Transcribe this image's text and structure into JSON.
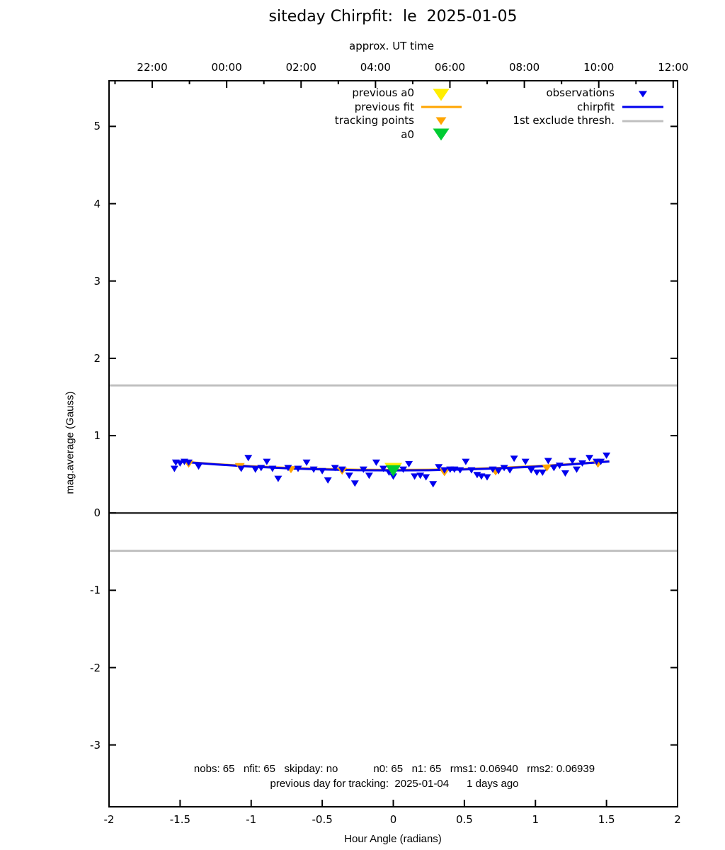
{
  "title": "siteday Chirpfit:  le  2025-01-05",
  "colors": {
    "blue": "#0000ee",
    "orange": "#ffa500",
    "yellow": "#ffee00",
    "green": "#00cc33",
    "gray": "#c0c0c0",
    "black": "#000000"
  },
  "axes": {
    "top": {
      "label": "approx. UT time",
      "ticks": [
        {
          "label": "22:00",
          "ha": -1.696
        },
        {
          "label": "00:00",
          "ha": -1.1724
        },
        {
          "label": "02:00",
          "ha": -0.6488
        },
        {
          "label": "04:00",
          "ha": -0.1252
        },
        {
          "label": "06:00",
          "ha": 0.3984
        },
        {
          "label": "08:00",
          "ha": 0.922
        },
        {
          "label": "10:00",
          "ha": 1.4456
        },
        {
          "label": "12:00",
          "ha": 1.9692
        }
      ],
      "minor_ha": [
        -1.9578,
        -1.4342,
        -0.9106,
        -0.387,
        0.1366,
        0.6602,
        1.1838,
        1.7074
      ]
    },
    "bottom": {
      "label": "Hour Angle (radians)",
      "ticks": [
        {
          "label": "-2",
          "v": -2
        },
        {
          "label": "-1.5",
          "v": -1.5
        },
        {
          "label": "-1",
          "v": -1
        },
        {
          "label": "-0.5",
          "v": -0.5
        },
        {
          "label": "0",
          "v": 0
        },
        {
          "label": "0.5",
          "v": 0.5
        },
        {
          "label": "1",
          "v": 1
        },
        {
          "label": "1.5",
          "v": 1.5
        },
        {
          "label": "2",
          "v": 2
        }
      ]
    },
    "left": {
      "label": "mag.average (Gauss)",
      "ticks": [
        {
          "label": "5",
          "v": 5
        },
        {
          "label": "4",
          "v": 4
        },
        {
          "label": "3",
          "v": 3
        },
        {
          "label": "2",
          "v": 2
        },
        {
          "label": "1",
          "v": 1
        },
        {
          "label": "0",
          "v": 0
        },
        {
          "label": "-1",
          "v": -1
        },
        {
          "label": "-2",
          "v": -2
        },
        {
          "label": "-3",
          "v": -3
        }
      ]
    }
  },
  "legend": {
    "left": [
      {
        "label": "previous a0",
        "sample": "big-triangle",
        "color": "#ffee00"
      },
      {
        "label": "previous fit",
        "sample": "line",
        "color": "#ffa500"
      },
      {
        "label": "tracking points",
        "sample": "small-triangle",
        "color": "#ffa500"
      },
      {
        "label": "a0",
        "sample": "big-triangle",
        "color": "#00cc33"
      }
    ],
    "right": [
      {
        "label": "observations",
        "sample": "small-triangle",
        "color": "#0000ee"
      },
      {
        "label": "chirpfit",
        "sample": "line",
        "color": "#0000ee"
      },
      {
        "label": "1st exclude thresh.",
        "sample": "line",
        "color": "#c0c0c0"
      }
    ]
  },
  "stats": {
    "line1": "nobs: 65   nfit: 65   skipday: no            n0: 65   n1: 65   rms1: 0.06940   rms2: 0.06939",
    "line2": "previous day for tracking:  2025-01-04      1 days ago"
  },
  "chart_data": {
    "type": "scatter",
    "title": "siteday Chirpfit:  le  2025-01-05",
    "xlabel": "Hour Angle (radians)",
    "ylabel": "mag.average (Gauss)",
    "x2label": "approx. UT time",
    "xlim": [
      -2,
      2
    ],
    "ylim": [
      -3.8,
      5.59
    ],
    "grid": false,
    "legend_position": "top-inside",
    "series": [
      {
        "name": "observations",
        "type": "scatter",
        "marker": "triangle-down",
        "color": "#0000ee",
        "points": [
          [
            -1.53,
            0.65
          ],
          [
            -1.54,
            0.57
          ],
          [
            -1.5,
            0.64
          ],
          [
            -1.47,
            0.66
          ],
          [
            -1.44,
            0.65
          ],
          [
            -1.37,
            0.6
          ],
          [
            -1.07,
            0.57
          ],
          [
            -1.02,
            0.71
          ],
          [
            -0.97,
            0.56
          ],
          [
            -0.93,
            0.58
          ],
          [
            -0.89,
            0.66
          ],
          [
            -0.85,
            0.57
          ],
          [
            -0.81,
            0.44
          ],
          [
            -0.74,
            0.58
          ],
          [
            -0.67,
            0.57
          ],
          [
            -0.61,
            0.65
          ],
          [
            -0.56,
            0.56
          ],
          [
            -0.5,
            0.54
          ],
          [
            -0.46,
            0.42
          ],
          [
            -0.41,
            0.58
          ],
          [
            -0.36,
            0.56
          ],
          [
            -0.31,
            0.48
          ],
          [
            -0.27,
            0.38
          ],
          [
            -0.21,
            0.56
          ],
          [
            -0.17,
            0.48
          ],
          [
            -0.12,
            0.65
          ],
          [
            -0.07,
            0.57
          ],
          [
            -0.03,
            0.52
          ],
          [
            0.0,
            0.47
          ],
          [
            0.07,
            0.56
          ],
          [
            0.11,
            0.63
          ],
          [
            0.15,
            0.47
          ],
          [
            0.19,
            0.48
          ],
          [
            0.23,
            0.46
          ],
          [
            0.28,
            0.37
          ],
          [
            0.32,
            0.59
          ],
          [
            0.36,
            0.55
          ],
          [
            0.4,
            0.56
          ],
          [
            0.43,
            0.56
          ],
          [
            0.47,
            0.55
          ],
          [
            0.51,
            0.66
          ],
          [
            0.55,
            0.55
          ],
          [
            0.59,
            0.49
          ],
          [
            0.62,
            0.47
          ],
          [
            0.66,
            0.46
          ],
          [
            0.7,
            0.56
          ],
          [
            0.74,
            0.54
          ],
          [
            0.78,
            0.58
          ],
          [
            0.82,
            0.55
          ],
          [
            0.85,
            0.7
          ],
          [
            0.93,
            0.66
          ],
          [
            0.97,
            0.55
          ],
          [
            1.01,
            0.52
          ],
          [
            1.05,
            0.52
          ],
          [
            1.09,
            0.67
          ],
          [
            1.13,
            0.58
          ],
          [
            1.17,
            0.61
          ],
          [
            1.21,
            0.51
          ],
          [
            1.26,
            0.67
          ],
          [
            1.29,
            0.56
          ],
          [
            1.33,
            0.64
          ],
          [
            1.38,
            0.71
          ],
          [
            1.43,
            0.66
          ],
          [
            1.46,
            0.66
          ],
          [
            1.5,
            0.74
          ]
        ]
      },
      {
        "name": "chirpfit",
        "type": "line",
        "color": "#0000ee",
        "x": [
          -1.55,
          -1.25,
          -1.0,
          -0.75,
          -0.5,
          -0.25,
          0,
          0.25,
          0.5,
          0.75,
          1.0,
          1.25,
          1.52
        ],
        "y": [
          0.67,
          0.628,
          0.6,
          0.578,
          0.563,
          0.553,
          0.55,
          0.553,
          0.563,
          0.578,
          0.6,
          0.628,
          0.666
        ]
      },
      {
        "name": "previous fit",
        "type": "line",
        "color": "#ffa500",
        "x": [
          -1.55,
          -1.25,
          -1.0,
          -0.75,
          -0.5,
          -0.25,
          0,
          0.25,
          0.5,
          0.75,
          1.0,
          1.25,
          1.52
        ],
        "y": [
          0.672,
          0.632,
          0.605,
          0.584,
          0.569,
          0.56,
          0.557,
          0.56,
          0.569,
          0.584,
          0.605,
          0.632,
          0.668
        ]
      },
      {
        "name": "tracking points",
        "type": "scatter",
        "marker": "triangle-down",
        "color": "#ffa500",
        "points": [
          [
            -1.44,
            0.63
          ],
          [
            -1.08,
            0.6
          ],
          [
            -0.72,
            0.56
          ],
          [
            -0.36,
            0.54
          ],
          [
            0.36,
            0.52
          ],
          [
            0.72,
            0.53
          ],
          [
            1.08,
            0.58
          ],
          [
            1.44,
            0.63
          ]
        ]
      },
      {
        "name": "previous a0",
        "type": "scatter",
        "marker": "triangle-down-big",
        "color": "#ffee00",
        "points": [
          [
            0.0,
            0.565
          ]
        ]
      },
      {
        "name": "a0",
        "type": "scatter",
        "marker": "triangle-down-big",
        "color": "#00cc33",
        "points": [
          [
            0.0,
            0.545
          ]
        ]
      },
      {
        "name": "1st exclude thresh.",
        "type": "hline",
        "color": "#c0c0c0",
        "y": [
          1.65,
          -0.49
        ]
      },
      {
        "name": "zero line",
        "type": "hline",
        "color": "#000000",
        "y": [
          0
        ]
      }
    ]
  }
}
